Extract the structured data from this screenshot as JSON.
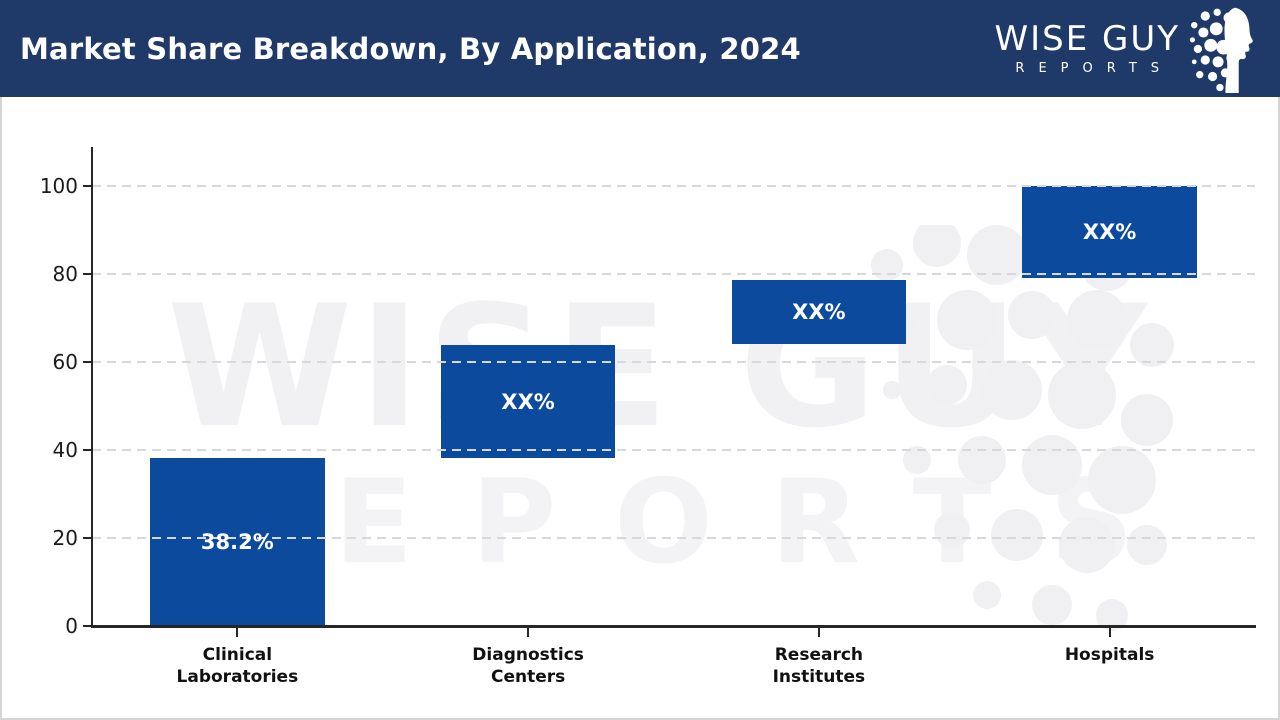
{
  "header": {
    "title": "Market Share Breakdown, By Application, 2024",
    "logo": {
      "wordmark": "WISE GUY",
      "subtitle": "REPORTS"
    }
  },
  "watermark": {
    "line1": "WISE GUY",
    "line2": "REPORTS"
  },
  "colors": {
    "header_bg": "#1f3a68",
    "bar": "#0c4a9e",
    "bar_label": "#ffffff",
    "axis": "#262626",
    "grid": "#d8d8d8",
    "watermark": "#f1f1f4",
    "border": "#d5d5d5"
  },
  "chart_data": {
    "type": "bar",
    "subtype": "waterfall-floating",
    "title": "Market Share Breakdown, By Application, 2024",
    "categories": [
      "Clinical Laboratories",
      "Diagnostics Centers",
      "Research Institutes",
      "Hospitals"
    ],
    "category_label_lines": [
      [
        "Clinical",
        "Laboratories"
      ],
      [
        "Diagnostics",
        "Centers"
      ],
      [
        "Research",
        "Institutes"
      ],
      [
        "Hospitals"
      ]
    ],
    "segments": [
      {
        "category": "Clinical Laboratories",
        "start": 0,
        "end": 38.2,
        "label": "38.2%"
      },
      {
        "category": "Diagnostics Centers",
        "start": 38.2,
        "end": 63.8,
        "label": "XX%"
      },
      {
        "category": "Research Institutes",
        "start": 64.0,
        "end": 78.6,
        "label": "XX%"
      },
      {
        "category": "Hospitals",
        "start": 79.0,
        "end": 100.0,
        "label": "XX%"
      }
    ],
    "ylim": [
      0,
      100
    ],
    "yticks": [
      0,
      20,
      40,
      60,
      80,
      100
    ],
    "xlabel": "",
    "ylabel": "",
    "grid": {
      "axis": "y",
      "style": "dashed",
      "on_top": true
    },
    "legend": "none",
    "bar_width_frac": 0.6
  }
}
